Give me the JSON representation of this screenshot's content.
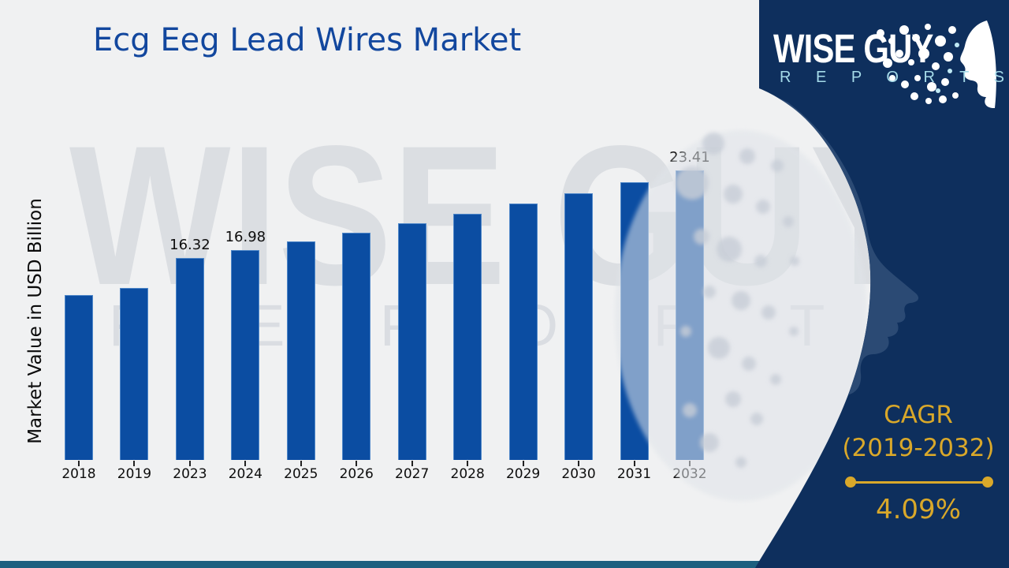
{
  "title": {
    "text": "Ecg Eeg Lead Wires Market"
  },
  "watermark": {
    "line1": "WISE GUY",
    "line2": "R E P O R T S"
  },
  "logo": {
    "line1": "WISE GUY",
    "line2": "R E P O R T S"
  },
  "cagr": {
    "label": "CAGR",
    "range": "(2019-2032)",
    "value": "4.09%"
  },
  "chart_data": {
    "type": "bar",
    "title": "Ecg Eeg Lead Wires Market",
    "xlabel": "",
    "ylabel": "Market Value in USD Billion",
    "categories": [
      "2018",
      "2019",
      "2023",
      "2024",
      "2025",
      "2026",
      "2027",
      "2028",
      "2029",
      "2030",
      "2031",
      "2032"
    ],
    "values": [
      13.35,
      13.9,
      16.32,
      16.98,
      17.67,
      18.4,
      19.15,
      19.93,
      20.75,
      21.6,
      22.48,
      23.41
    ],
    "bar_labels": [
      null,
      null,
      "16.32",
      "16.98",
      null,
      null,
      null,
      null,
      null,
      null,
      null,
      "23.41"
    ],
    "ylim": [
      0,
      25
    ],
    "grid": false,
    "legend": false,
    "bar_color": "#0b4da2"
  },
  "colors": {
    "background": "#f0f1f2",
    "bar": "#0b4da2",
    "title_blue": "#12479e",
    "navy_panel": "#0e2f5d",
    "navy_face": "#2b4a74",
    "gold": "#d9a82a",
    "teal_strip": "#1c5f7f",
    "logo_subtitle": "#a5dbe9",
    "watermark_gray": "#b2b8c3"
  }
}
